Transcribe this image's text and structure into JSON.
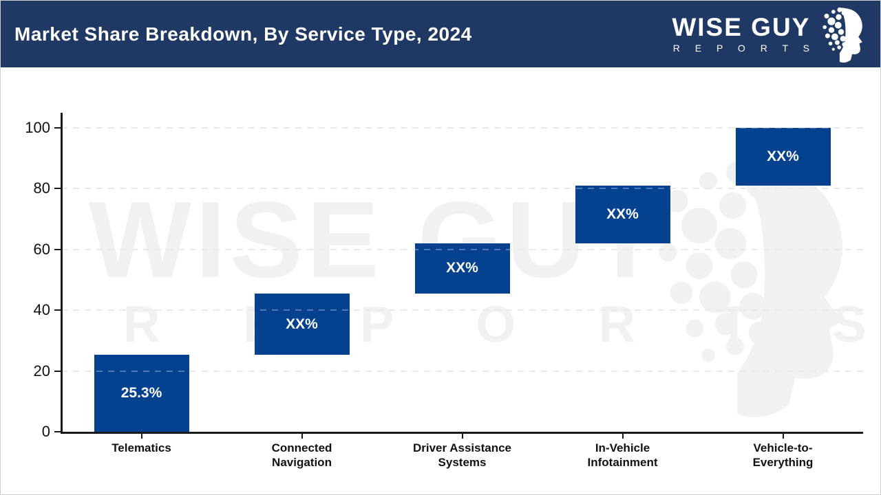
{
  "header": {
    "title": "Market Share Breakdown, By Service Type, 2024",
    "logo": {
      "line1": "WISE GUY",
      "line2": "R E P O R T S"
    }
  },
  "watermark": {
    "line1": "WISE GUY",
    "line2": "R E P O R T S"
  },
  "colors": {
    "header_bg": "#1f3864",
    "bar": "#04418f",
    "bar_label": "#ffffff",
    "grid": "#e0e0e0",
    "axis": "#1a1a1a",
    "watermark": "#f1f1f3"
  },
  "chart_data": {
    "type": "bar",
    "subtype": "waterfall-floating-bars",
    "title": "Market Share Breakdown, By Service Type, 2024",
    "categories": [
      "Telematics",
      "Connected\nNavigation",
      "Driver Assistance\nSystems",
      "In-Vehicle\nInfotainment",
      "Vehicle-to-\nEverything"
    ],
    "series": [
      {
        "name": "Market Share (%)",
        "segments": [
          {
            "start": 0,
            "end": 25.3,
            "label": "25.3%"
          },
          {
            "start": 25.3,
            "end": 45.5,
            "label": "XX%"
          },
          {
            "start": 45.5,
            "end": 62,
            "label": "XX%"
          },
          {
            "start": 62,
            "end": 81,
            "label": "XX%"
          },
          {
            "start": 81,
            "end": 100,
            "label": "XX%"
          }
        ]
      }
    ],
    "xlabel": "",
    "ylabel": "",
    "ylim": [
      0,
      100
    ],
    "yticks": [
      0,
      20,
      40,
      60,
      80,
      100
    ],
    "grid": "dashed-horizontal",
    "legend": "none"
  }
}
